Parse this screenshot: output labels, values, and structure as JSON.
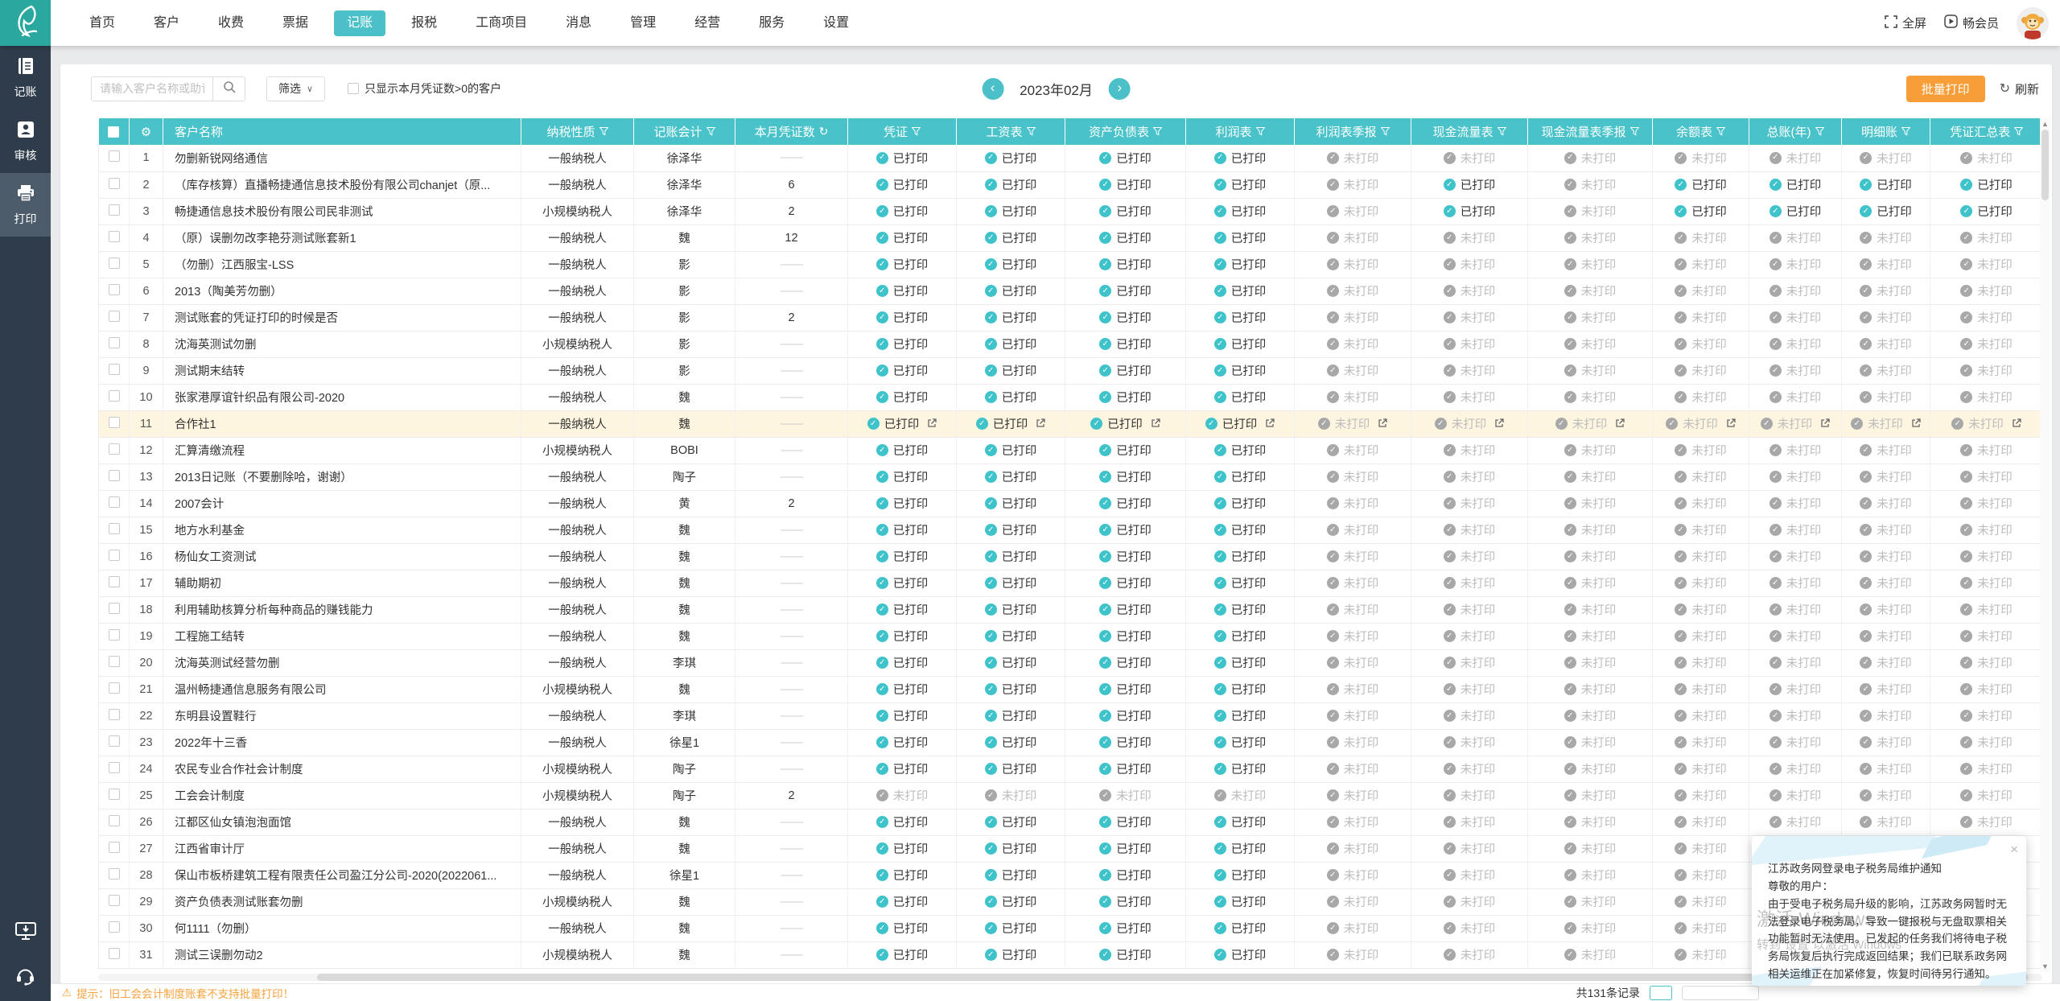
{
  "colors": {
    "accent_teal": "#4bc0c8",
    "logo_teal": "#2aa89f",
    "header_teal": "#49c2c9",
    "status_on": "#3fc3ca",
    "status_off": "#a8a8a8",
    "orange": "#f89e38",
    "sidebar_dark": "#2e3c4b",
    "highlight_row": "#fdf5df"
  },
  "icons": {
    "refresh": "↻",
    "close": "×",
    "warning": "⚠",
    "prev": "‹",
    "next": "›",
    "chevron_down": "∨",
    "check": "✓",
    "gear": "⚙",
    "up_arrow": "▲",
    "down_arrow": "▼"
  },
  "topbar": {
    "nav": [
      {
        "id": "home",
        "label": "首页",
        "active": false
      },
      {
        "id": "customers",
        "label": "客户",
        "active": false
      },
      {
        "id": "billing",
        "label": "收费",
        "active": false
      },
      {
        "id": "invoices",
        "label": "票据",
        "active": false
      },
      {
        "id": "bookkeeping",
        "label": "记账",
        "active": true
      },
      {
        "id": "tax-filing",
        "label": "报税",
        "active": false
      },
      {
        "id": "business-projects",
        "label": "工商项目",
        "active": false
      },
      {
        "id": "messages",
        "label": "消息",
        "active": false
      },
      {
        "id": "management",
        "label": "管理",
        "active": false
      },
      {
        "id": "operations",
        "label": "经营",
        "active": false
      },
      {
        "id": "services",
        "label": "服务",
        "active": false
      },
      {
        "id": "settings",
        "label": "设置",
        "active": false
      }
    ],
    "fullscreen_label": "全屏",
    "member_label": "畅会员"
  },
  "sidebar": {
    "items": [
      {
        "id": "bookkeeping",
        "label": "记账",
        "icon": "ledger-icon",
        "active": false
      },
      {
        "id": "audit",
        "label": "审核",
        "icon": "audit-stamp-icon",
        "active": false
      },
      {
        "id": "print",
        "label": "打印",
        "icon": "printer-icon",
        "active": true
      }
    ]
  },
  "toolbar": {
    "search_placeholder": "请输入客户名称或助记码",
    "filter_label": "筛选",
    "checkbox_label": "只显示本月凭证数>0的客户",
    "period": "2023年02月",
    "batch_print_label": "批量打印",
    "refresh_label": "刷新"
  },
  "table": {
    "status_printed": "已打印",
    "status_unprinted": "未打印",
    "columns": [
      {
        "id": "customer-name",
        "label": "客户名称",
        "icon": "none"
      },
      {
        "id": "tax-type",
        "label": "纳税性质",
        "icon": "filter"
      },
      {
        "id": "accountant",
        "label": "记账会计",
        "icon": "filter"
      },
      {
        "id": "voucher-count",
        "label": "本月凭证数",
        "icon": "refresh"
      },
      {
        "id": "voucher",
        "label": "凭证",
        "icon": "filter"
      },
      {
        "id": "payroll",
        "label": "工资表",
        "icon": "filter"
      },
      {
        "id": "balance-sheet",
        "label": "资产负债表",
        "icon": "filter"
      },
      {
        "id": "income-statement",
        "label": "利润表",
        "icon": "filter"
      },
      {
        "id": "income-statement-quarterly",
        "label": "利润表季报",
        "icon": "filter"
      },
      {
        "id": "cash-flow",
        "label": "现金流量表",
        "icon": "filter"
      },
      {
        "id": "cash-flow-quarterly",
        "label": "现金流量表季报",
        "icon": "filter"
      },
      {
        "id": "balance-table",
        "label": "余额表",
        "icon": "filter"
      },
      {
        "id": "general-ledger-year",
        "label": "总账(年)",
        "icon": "filter"
      },
      {
        "id": "detail-ledger",
        "label": "明细账",
        "icon": "filter"
      },
      {
        "id": "voucher-summary",
        "label": "凭证汇总表",
        "icon": "filter"
      }
    ],
    "rows": [
      {
        "no": 1,
        "name": "勿删新锐网络通信",
        "tax": "一般纳税人",
        "accountant": "徐泽华",
        "vouchers": "",
        "statuses": "11110000000",
        "links": false,
        "highlight": false
      },
      {
        "no": 2,
        "name": "（库存核算）直播畅捷通信息技术股份有限公司chanjet（原...",
        "tax": "一般纳税人",
        "accountant": "徐泽华",
        "vouchers": "6",
        "statuses": "11110101111",
        "links": false,
        "highlight": false
      },
      {
        "no": 3,
        "name": "畅捷通信息技术股份有限公司民非测试",
        "tax": "小规模纳税人",
        "accountant": "徐泽华",
        "vouchers": "2",
        "statuses": "11110101111",
        "links": false,
        "highlight": false
      },
      {
        "no": 4,
        "name": "（原）误删勿改李艳芬测试账套新1",
        "tax": "一般纳税人",
        "accountant": "魏",
        "vouchers": "12",
        "statuses": "11110000000",
        "links": false,
        "highlight": false
      },
      {
        "no": 5,
        "name": "（勿删）江西服宝-LSS",
        "tax": "一般纳税人",
        "accountant": "影",
        "vouchers": "",
        "statuses": "11110000000",
        "links": false,
        "highlight": false
      },
      {
        "no": 6,
        "name": "2013（陶美芳勿删）",
        "tax": "一般纳税人",
        "accountant": "影",
        "vouchers": "",
        "statuses": "11110000000",
        "links": false,
        "highlight": false
      },
      {
        "no": 7,
        "name": "测试账套的凭证打印的时候是否",
        "tax": "一般纳税人",
        "accountant": "影",
        "vouchers": "2",
        "statuses": "11110000000",
        "links": false,
        "highlight": false
      },
      {
        "no": 8,
        "name": "沈海英测试勿删",
        "tax": "小规模纳税人",
        "accountant": "影",
        "vouchers": "",
        "statuses": "11110000000",
        "links": false,
        "highlight": false
      },
      {
        "no": 9,
        "name": "测试期末结转",
        "tax": "一般纳税人",
        "accountant": "影",
        "vouchers": "",
        "statuses": "11110000000",
        "links": false,
        "highlight": false
      },
      {
        "no": 10,
        "name": "张家港厚谊针织品有限公司-2020",
        "tax": "一般纳税人",
        "accountant": "魏",
        "vouchers": "",
        "statuses": "11110000000",
        "links": false,
        "highlight": false
      },
      {
        "no": 11,
        "name": "合作社1",
        "tax": "一般纳税人",
        "accountant": "魏",
        "vouchers": "",
        "statuses": "11110000000",
        "links": true,
        "highlight": true
      },
      {
        "no": 12,
        "name": "汇算清缴流程",
        "tax": "小规模纳税人",
        "accountant": "BOBI",
        "vouchers": "",
        "statuses": "11110000000",
        "links": false,
        "highlight": false
      },
      {
        "no": 13,
        "name": "2013日记账（不要删除哈，谢谢）",
        "tax": "一般纳税人",
        "accountant": "陶子",
        "vouchers": "",
        "statuses": "11110000000",
        "links": false,
        "highlight": false
      },
      {
        "no": 14,
        "name": "2007会计",
        "tax": "一般纳税人",
        "accountant": "黄",
        "vouchers": "2",
        "statuses": "11110000000",
        "links": false,
        "highlight": false
      },
      {
        "no": 15,
        "name": "地方水利基金",
        "tax": "一般纳税人",
        "accountant": "魏",
        "vouchers": "",
        "statuses": "11110000000",
        "links": false,
        "highlight": false
      },
      {
        "no": 16,
        "name": "杨仙女工资测试",
        "tax": "一般纳税人",
        "accountant": "魏",
        "vouchers": "",
        "statuses": "11110000000",
        "links": false,
        "highlight": false
      },
      {
        "no": 17,
        "name": "辅助期初",
        "tax": "一般纳税人",
        "accountant": "魏",
        "vouchers": "",
        "statuses": "11110000000",
        "links": false,
        "highlight": false
      },
      {
        "no": 18,
        "name": "利用辅助核算分析每种商品的赚钱能力",
        "tax": "一般纳税人",
        "accountant": "魏",
        "vouchers": "",
        "statuses": "11110000000",
        "links": false,
        "highlight": false
      },
      {
        "no": 19,
        "name": "工程施工结转",
        "tax": "一般纳税人",
        "accountant": "魏",
        "vouchers": "",
        "statuses": "11110000000",
        "links": false,
        "highlight": false
      },
      {
        "no": 20,
        "name": "沈海英测试经营勿删",
        "tax": "一般纳税人",
        "accountant": "李琪",
        "vouchers": "",
        "statuses": "11110000000",
        "links": false,
        "highlight": false
      },
      {
        "no": 21,
        "name": "温州畅捷通信息服务有限公司",
        "tax": "小规模纳税人",
        "accountant": "魏",
        "vouchers": "",
        "statuses": "11110000000",
        "links": false,
        "highlight": false
      },
      {
        "no": 22,
        "name": "东明县设置鞋行",
        "tax": "一般纳税人",
        "accountant": "李琪",
        "vouchers": "",
        "statuses": "11110000000",
        "links": false,
        "highlight": false
      },
      {
        "no": 23,
        "name": "2022年十三香",
        "tax": "一般纳税人",
        "accountant": "徐星1",
        "vouchers": "",
        "statuses": "11110000000",
        "links": false,
        "highlight": false
      },
      {
        "no": 24,
        "name": "农民专业合作社会计制度",
        "tax": "小规模纳税人",
        "accountant": "陶子",
        "vouchers": "",
        "statuses": "11110000000",
        "links": false,
        "highlight": false
      },
      {
        "no": 25,
        "name": "工会会计制度",
        "tax": "小规模纳税人",
        "accountant": "陶子",
        "vouchers": "2",
        "statuses": "00000000000",
        "links": false,
        "highlight": false
      },
      {
        "no": 26,
        "name": "江都区仙女镇泡泡面馆",
        "tax": "一般纳税人",
        "accountant": "魏",
        "vouchers": "",
        "statuses": "11110000000",
        "links": false,
        "highlight": false
      },
      {
        "no": 27,
        "name": "江西省审计厅",
        "tax": "一般纳税人",
        "accountant": "魏",
        "vouchers": "",
        "statuses": "11110000000",
        "links": false,
        "highlight": false
      },
      {
        "no": 28,
        "name": "保山市板桥建筑工程有限责任公司盈江分公司-2020(2022061...",
        "tax": "一般纳税人",
        "accountant": "徐星1",
        "vouchers": "",
        "statuses": "11110000000",
        "links": false,
        "highlight": false
      },
      {
        "no": 29,
        "name": "资产负债表测试账套勿删",
        "tax": "小规模纳税人",
        "accountant": "魏",
        "vouchers": "",
        "statuses": "11110000000",
        "links": false,
        "highlight": false
      },
      {
        "no": 30,
        "name": "何1111（勿删）",
        "tax": "一般纳税人",
        "accountant": "魏",
        "vouchers": "",
        "statuses": "11110000000",
        "links": false,
        "highlight": false
      },
      {
        "no": 31,
        "name": "测试三误删勿动2",
        "tax": "小规模纳税人",
        "accountant": "魏",
        "vouchers": "",
        "statuses": "11110000000",
        "links": false,
        "highlight": false
      }
    ]
  },
  "footer": {
    "warning": "提示：旧工会会计制度账套不支持批量打印！",
    "record_count": "共131条记录"
  },
  "popup": {
    "title": "江苏政务网登录电子税务局维护通知",
    "greeting": "尊敬的用户：",
    "body": "由于受电子税务局升级的影响，江苏政务网暂时无法登录电子税务局，导致一键报税与无盘取票相关功能暂时无法使用。已发起的任务我们将待电子税务局恢复后执行完成返回结果；我们已联系政务网相关运维正在加紧修复，恢复时间待另行通知。",
    "watermark_line1": "激活 Windows",
    "watermark_line2": "转到“设置”以激活 Windows"
  }
}
